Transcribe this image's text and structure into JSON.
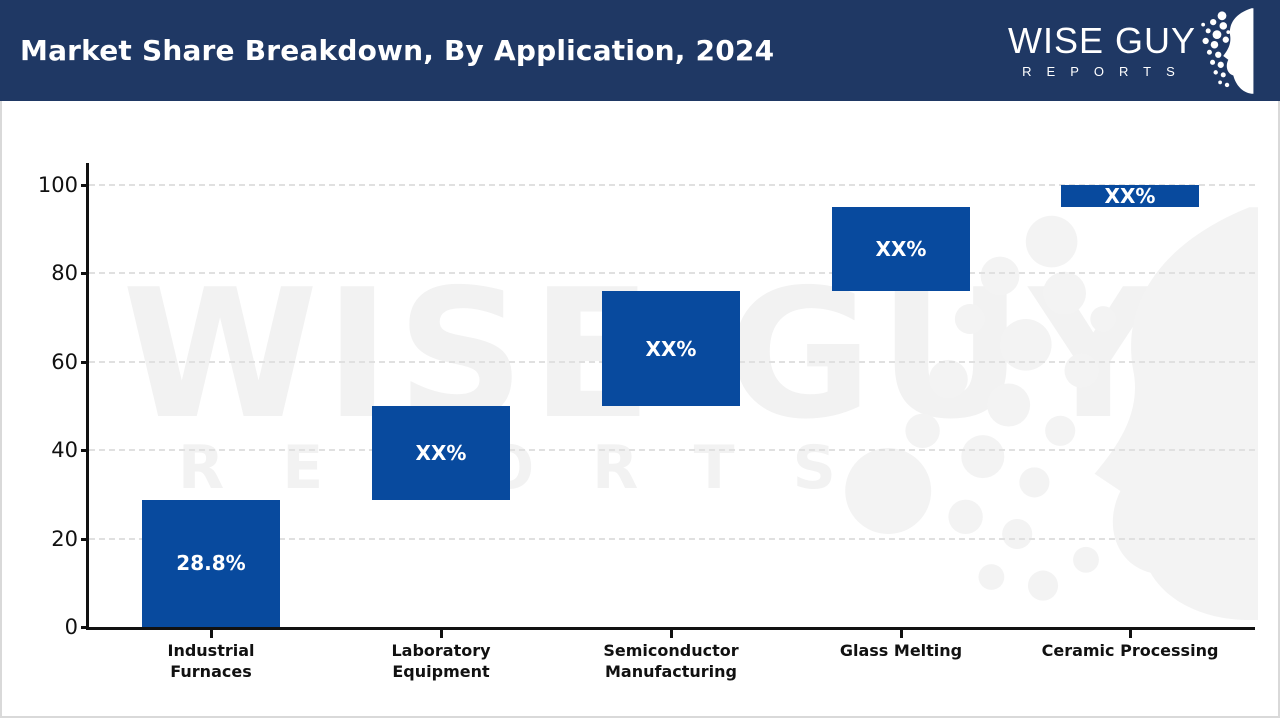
{
  "header": {
    "title": "Market Share Breakdown, By Application, 2024",
    "logo": {
      "name": "WISE GUY",
      "subtitle": "REPORTS"
    }
  },
  "watermark": {
    "line1": "WISE GUY",
    "line2": "REPORTS"
  },
  "chart_data": {
    "type": "bar",
    "subtype": "floating-waterfall",
    "title": "Market Share Breakdown, By Application, 2024",
    "categories": [
      "Industrial Furnaces",
      "Laboratory Equipment",
      "Semiconductor Manufacturing",
      "Glass Melting",
      "Ceramic Processing"
    ],
    "category_label_lines": [
      [
        "Industrial",
        "Furnaces"
      ],
      [
        "Laboratory",
        "Equipment"
      ],
      [
        "Semiconductor",
        "Manufacturing"
      ],
      [
        "Glass Melting"
      ],
      [
        "Ceramic Processing"
      ]
    ],
    "bars": [
      {
        "category": "Industrial Furnaces",
        "start": 0,
        "end": 28.8,
        "label": "28.8%"
      },
      {
        "category": "Laboratory Equipment",
        "start": 28.8,
        "end": 50,
        "label": "XX%"
      },
      {
        "category": "Semiconductor Manufacturing",
        "start": 50,
        "end": 76,
        "label": "XX%"
      },
      {
        "category": "Glass Melting",
        "start": 76,
        "end": 95,
        "label": "XX%"
      },
      {
        "category": "Ceramic Processing",
        "start": 95,
        "end": 100,
        "label": "XX%"
      }
    ],
    "yticks": [
      0,
      20,
      40,
      60,
      80,
      100
    ],
    "ylim": [
      0,
      105
    ],
    "xlabel": "",
    "ylabel": "",
    "grid": "horizontal-dashed",
    "legend": "none"
  },
  "colors": {
    "header_bg": "#1f3864",
    "bar": "#084a9e",
    "bar_label": "#ffffff",
    "grid": "#e0e0e0",
    "axis": "#111111",
    "text": "#111111",
    "watermark": "#f2f2f2",
    "border": "#d9d9d9"
  }
}
